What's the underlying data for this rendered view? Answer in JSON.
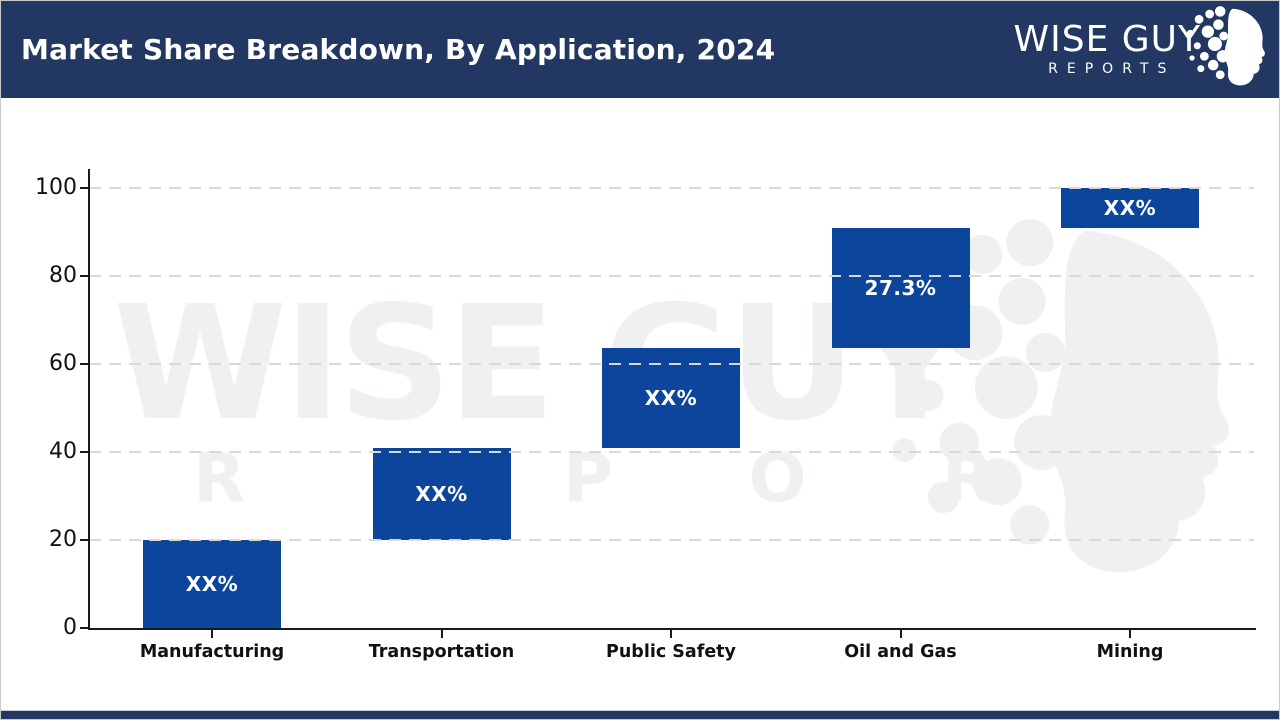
{
  "header": {
    "title": "Market Share Breakdown, By Application, 2024",
    "logo": {
      "primary": "WISE GUY",
      "secondary": "REPORTS"
    }
  },
  "watermark": {
    "primary": "WISE GUY",
    "secondary": "R E P O R T S"
  },
  "colors": {
    "header_bg": "#223862",
    "footer_bg": "#223862",
    "bar_fill": "#0c469c",
    "grid_line": "#d9d9d9",
    "axis_line": "#1a1a1a",
    "tick_label": "#111111",
    "bar_label": "#ffffff",
    "watermark": "#eff0f2"
  },
  "chart_data": {
    "type": "bar",
    "subtype": "floating-waterfall",
    "title": "Market Share Breakdown, By Application, 2024",
    "categories": [
      "Manufacturing",
      "Transportation",
      "Public Safety",
      "Oil and Gas",
      "Mining"
    ],
    "segments": [
      {
        "category": "Manufacturing",
        "start": 0,
        "end": 20,
        "label": "XX%"
      },
      {
        "category": "Transportation",
        "start": 20,
        "end": 41,
        "label": "XX%"
      },
      {
        "category": "Public Safety",
        "start": 41,
        "end": 63.6,
        "label": "XX%"
      },
      {
        "category": "Oil and Gas",
        "start": 63.6,
        "end": 90.9,
        "label": "27.3%"
      },
      {
        "category": "Mining",
        "start": 90.9,
        "end": 100,
        "label": "XX%"
      }
    ],
    "ylim": [
      0,
      100
    ],
    "yticks": [
      0,
      20,
      40,
      60,
      80,
      100
    ],
    "xlabel": "",
    "ylabel": "",
    "grid": "horizontal-dashed",
    "legend": "none"
  }
}
